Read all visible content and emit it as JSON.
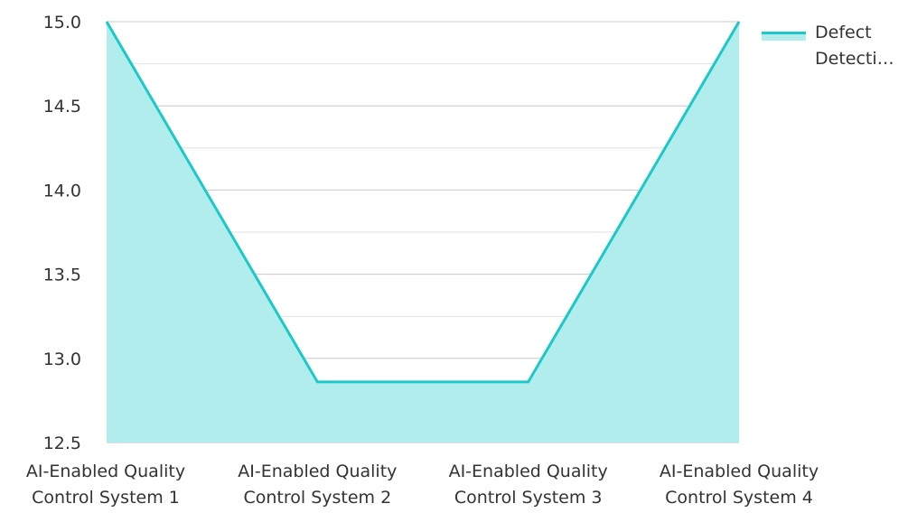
{
  "chart_data": {
    "type": "area",
    "categories": [
      [
        "AI-Enabled Quality",
        "Control System 1"
      ],
      [
        "AI-Enabled Quality",
        "Control System 2"
      ],
      [
        "AI-Enabled Quality",
        "Control System 3"
      ],
      [
        "AI-Enabled Quality",
        "Control System 4"
      ]
    ],
    "series": [
      {
        "name": "Defect Detecti…",
        "values": [
          15.0,
          12.86,
          12.86,
          15.0
        ]
      }
    ],
    "y_ticks": [
      "12.5",
      "13.0",
      "13.5",
      "14.0",
      "14.5",
      "15.0"
    ],
    "ylim": [
      12.5,
      15.0
    ],
    "grid": true,
    "legend_position": "top-right"
  },
  "legend": {
    "label_line1": "Defect",
    "label_line2": "Detecti…"
  },
  "colors": {
    "line": "#1cc8c8",
    "fill": "#b2eded",
    "grid": "#c8c8c8",
    "minor_grid": "#e2e2e2",
    "text": "#333333"
  }
}
